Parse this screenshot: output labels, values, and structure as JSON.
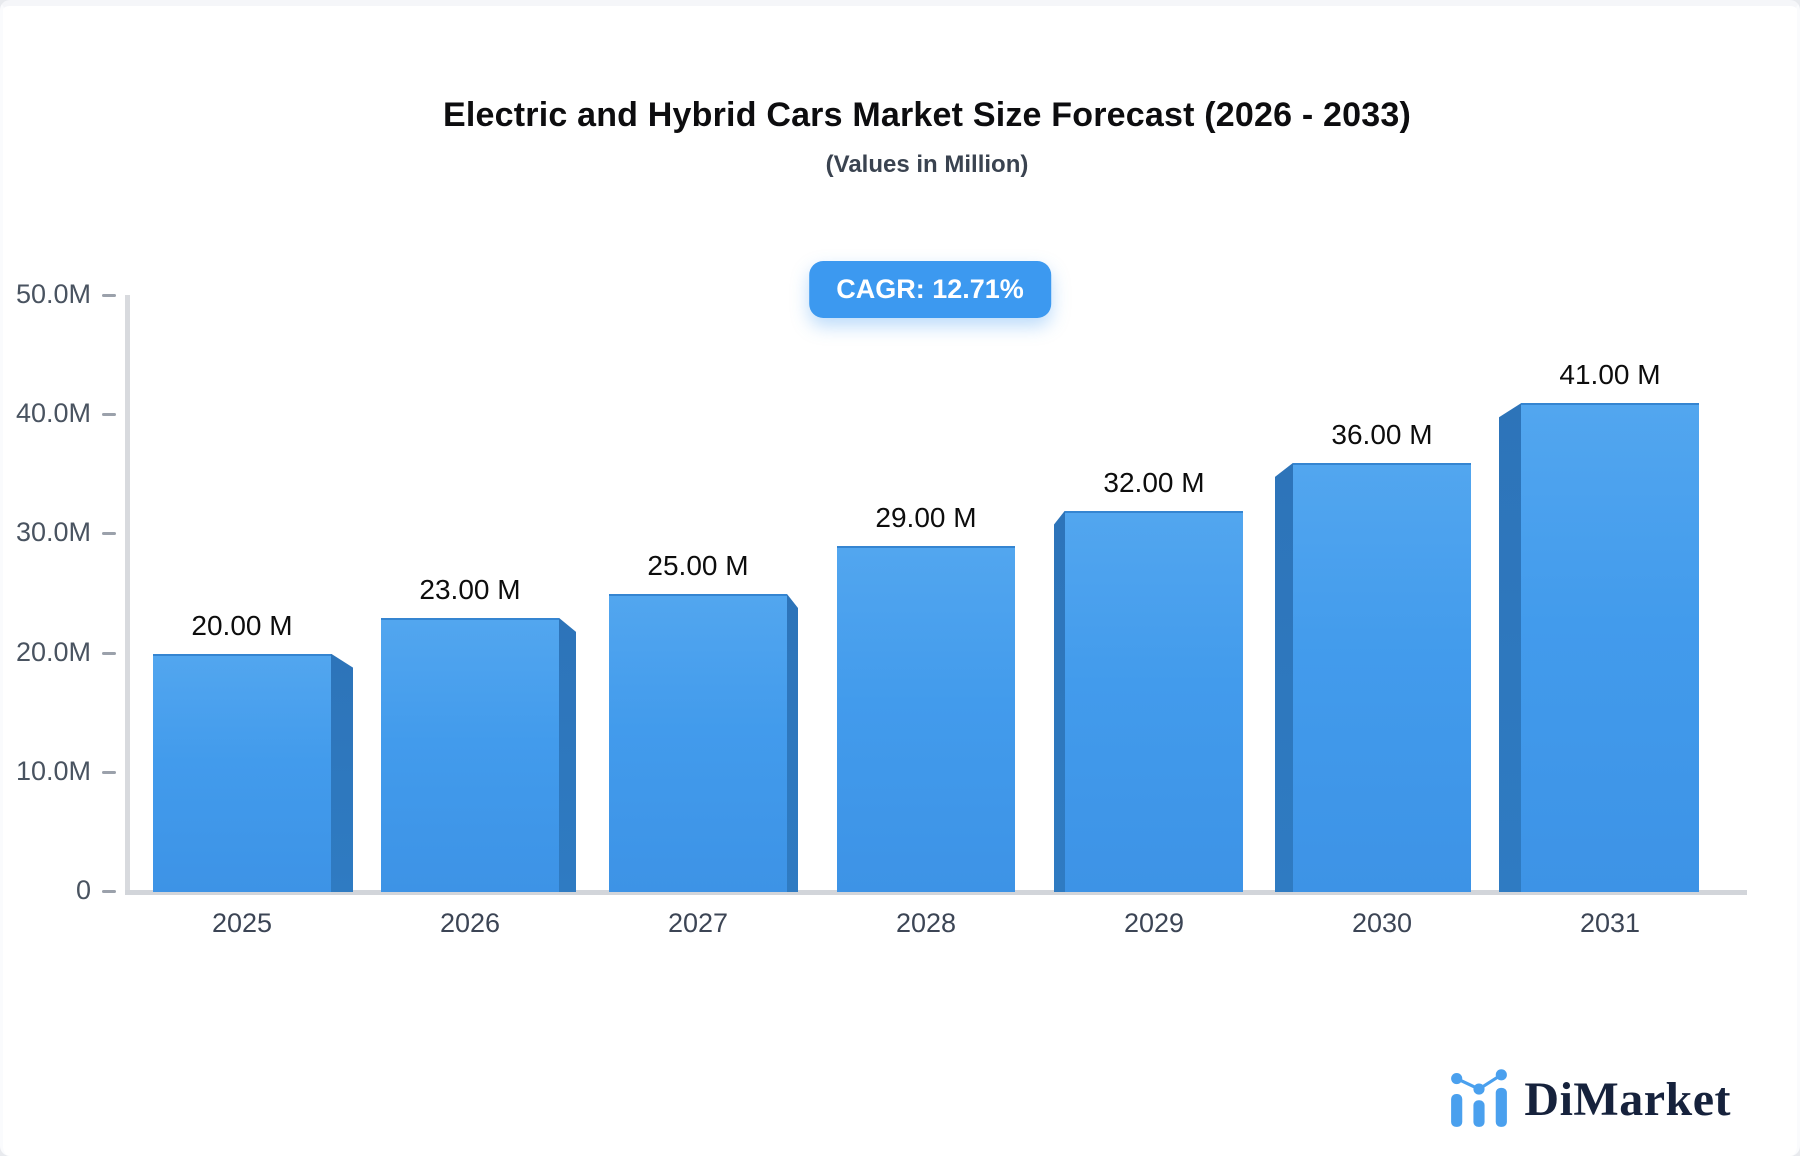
{
  "page": {
    "title": "Electric and Hybrid Cars Market Size Forecast (2026 - 2033)",
    "subtitle": "(Values in Million)",
    "cagr_badge": "CAGR: 12.71%",
    "logo_text": "DiMarket"
  },
  "colors": {
    "bar_face_top": "#52a6ef",
    "bar_face_bottom": "#3d93e6",
    "bar_side": "#2e77bd",
    "badge_bg": "#3c99f0",
    "axis_line": "#d8dade",
    "tick_text": "#495360",
    "year_text": "#3c4555",
    "value_text": "#0d0d0d",
    "logo_navy": "#16223c",
    "logo_blue": "#4aa0ee"
  },
  "chart_data": {
    "type": "bar",
    "style": "3d-columns",
    "title": "Electric and Hybrid Cars Market Size Forecast (2026 - 2033)",
    "subtitle": "(Values in Million)",
    "annotation": "CAGR: 12.71%",
    "unit": "Million",
    "categories": [
      "2025",
      "2026",
      "2027",
      "2028",
      "2029",
      "2030",
      "2031"
    ],
    "values": [
      20,
      23,
      25,
      29,
      32,
      36,
      41
    ],
    "value_labels": [
      "20.00 M",
      "23.00 M",
      "25.00 M",
      "29.00 M",
      "32.00 M",
      "36.00 M",
      "41.00 M"
    ],
    "xlabel": "",
    "ylabel": "",
    "ylim": [
      0,
      50
    ],
    "y_ticks": [
      {
        "label": "50.0M",
        "value": 50
      },
      {
        "label": "40.0M",
        "value": 40
      },
      {
        "label": "30.0M",
        "value": 30
      },
      {
        "label": "20.0M",
        "value": 20
      },
      {
        "label": "10.0M",
        "value": 10
      },
      {
        "label": "0",
        "value": 0
      }
    ],
    "grid": false,
    "legend": false
  }
}
